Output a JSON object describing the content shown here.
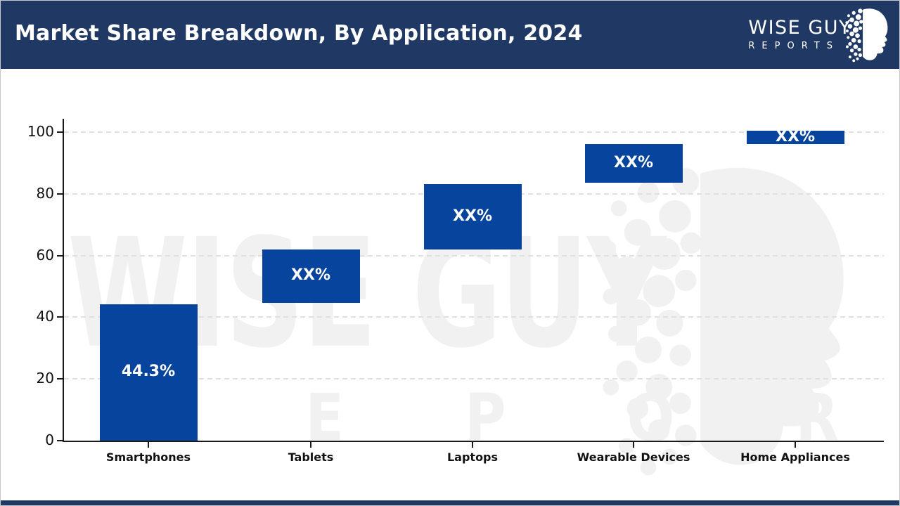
{
  "header": {
    "title": "Market Share Breakdown, By Application, 2024",
    "logo": {
      "line1": "WISE GUY",
      "line2": "REPORTS"
    }
  },
  "watermark": {
    "line1": "WISE GUY",
    "line2": "R E P O R T S"
  },
  "colors": {
    "header_bg": "#203864",
    "footer_bg": "#203864",
    "bar": "#07449d",
    "bar_label_text": "#ffffff",
    "gridline": "#e0e0e0",
    "axis": "#1a1a1a",
    "watermark": "#f1f1f1"
  },
  "chart_data": {
    "type": "bar",
    "subtype": "waterfall",
    "title": "Market Share Breakdown, By Application, 2024",
    "categories": [
      "Smartphones",
      "Tablets",
      "Laptops",
      "Wearable Devices",
      "Home Appliances"
    ],
    "bars": [
      {
        "category": "Smartphones",
        "start": 0,
        "end": 44.3,
        "label": "44.3%"
      },
      {
        "category": "Tablets",
        "start": 44.6,
        "end": 61.9,
        "label": "XX%"
      },
      {
        "category": "Laptops",
        "start": 62.0,
        "end": 83.1,
        "label": "XX%"
      },
      {
        "category": "Wearable Devices",
        "start": 83.6,
        "end": 96.1,
        "label": "XX%"
      },
      {
        "category": "Home Appliances",
        "start": 96.1,
        "end": 100.4,
        "label": "XX%"
      }
    ],
    "yticks": [
      0,
      20,
      40,
      60,
      80,
      100
    ],
    "ylim": [
      0,
      105
    ],
    "xlabel": "",
    "ylabel": "",
    "grid": "horizontal-dashed",
    "legend": null
  }
}
